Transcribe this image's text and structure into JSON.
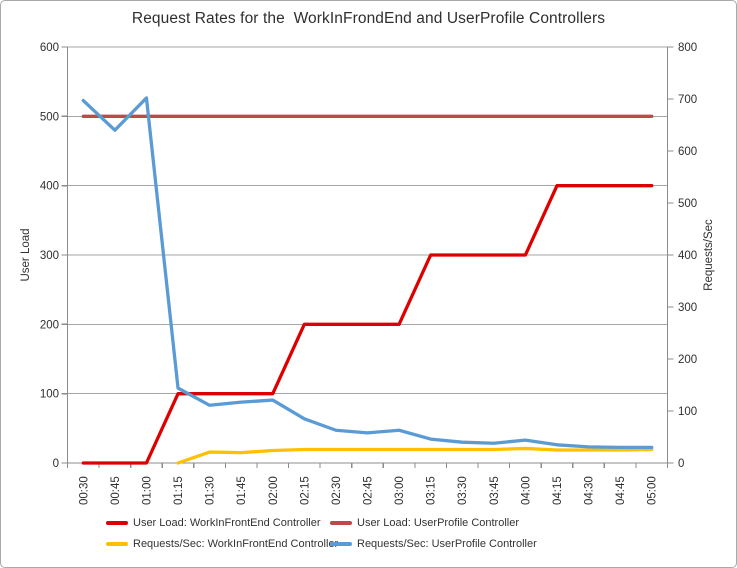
{
  "title": "Request Rates for the  WorkInFrondEnd and UserProfile Controllers",
  "colors": {
    "grid": "#a6a6a6",
    "axis": "#8c8c8c",
    "tick_text": "#303030",
    "title_text": "#2f2f2f"
  },
  "chart_data": {
    "type": "line",
    "title": "Request Rates for the WorkInFrondEnd and UserProfile Controllers",
    "categories": [
      "00:30",
      "00:45",
      "01:00",
      "01:15",
      "01:30",
      "01:45",
      "02:00",
      "02:15",
      "02:30",
      "02:45",
      "03:00",
      "03:15",
      "03:30",
      "03:45",
      "04:00",
      "04:15",
      "04:30",
      "04:45",
      "05:00"
    ],
    "left_axis": {
      "label": "User Load",
      "min": 0,
      "max": 600,
      "tick_step": 100
    },
    "right_axis": {
      "label": "Requests/Sec",
      "min": 0,
      "max": 800,
      "tick_step": 100
    },
    "grid": "horizontal",
    "legend_position": "bottom",
    "series": [
      {
        "name": "User Load: WorkInFrontEnd Controller",
        "axis": "left",
        "color": "#de0000",
        "values": [
          0,
          0,
          0,
          100,
          100,
          100,
          100,
          200,
          200,
          200,
          200,
          300,
          300,
          300,
          300,
          400,
          400,
          400,
          400
        ]
      },
      {
        "name": "User Load: UserProfile Controller",
        "axis": "left",
        "color": "#bc4a46",
        "values": [
          500,
          500,
          500,
          500,
          500,
          500,
          500,
          500,
          500,
          500,
          500,
          500,
          500,
          500,
          500,
          500,
          500,
          500,
          500
        ]
      },
      {
        "name": "Requests/Sec: WorkInFrontEnd Controller",
        "axis": "right",
        "color": "#ffc000",
        "values": [
          null,
          null,
          null,
          0,
          21,
          20,
          24,
          26,
          26,
          26,
          26,
          26,
          26,
          26,
          28,
          25,
          25,
          25,
          26
        ]
      },
      {
        "name": "Requests/Sec: UserProfile Controller",
        "axis": "right",
        "color": "#5b9bd5",
        "values": [
          697,
          640,
          702,
          144,
          111,
          117,
          121,
          85,
          63,
          58,
          63,
          46,
          40,
          38,
          44,
          35,
          31,
          30,
          30
        ]
      }
    ]
  }
}
